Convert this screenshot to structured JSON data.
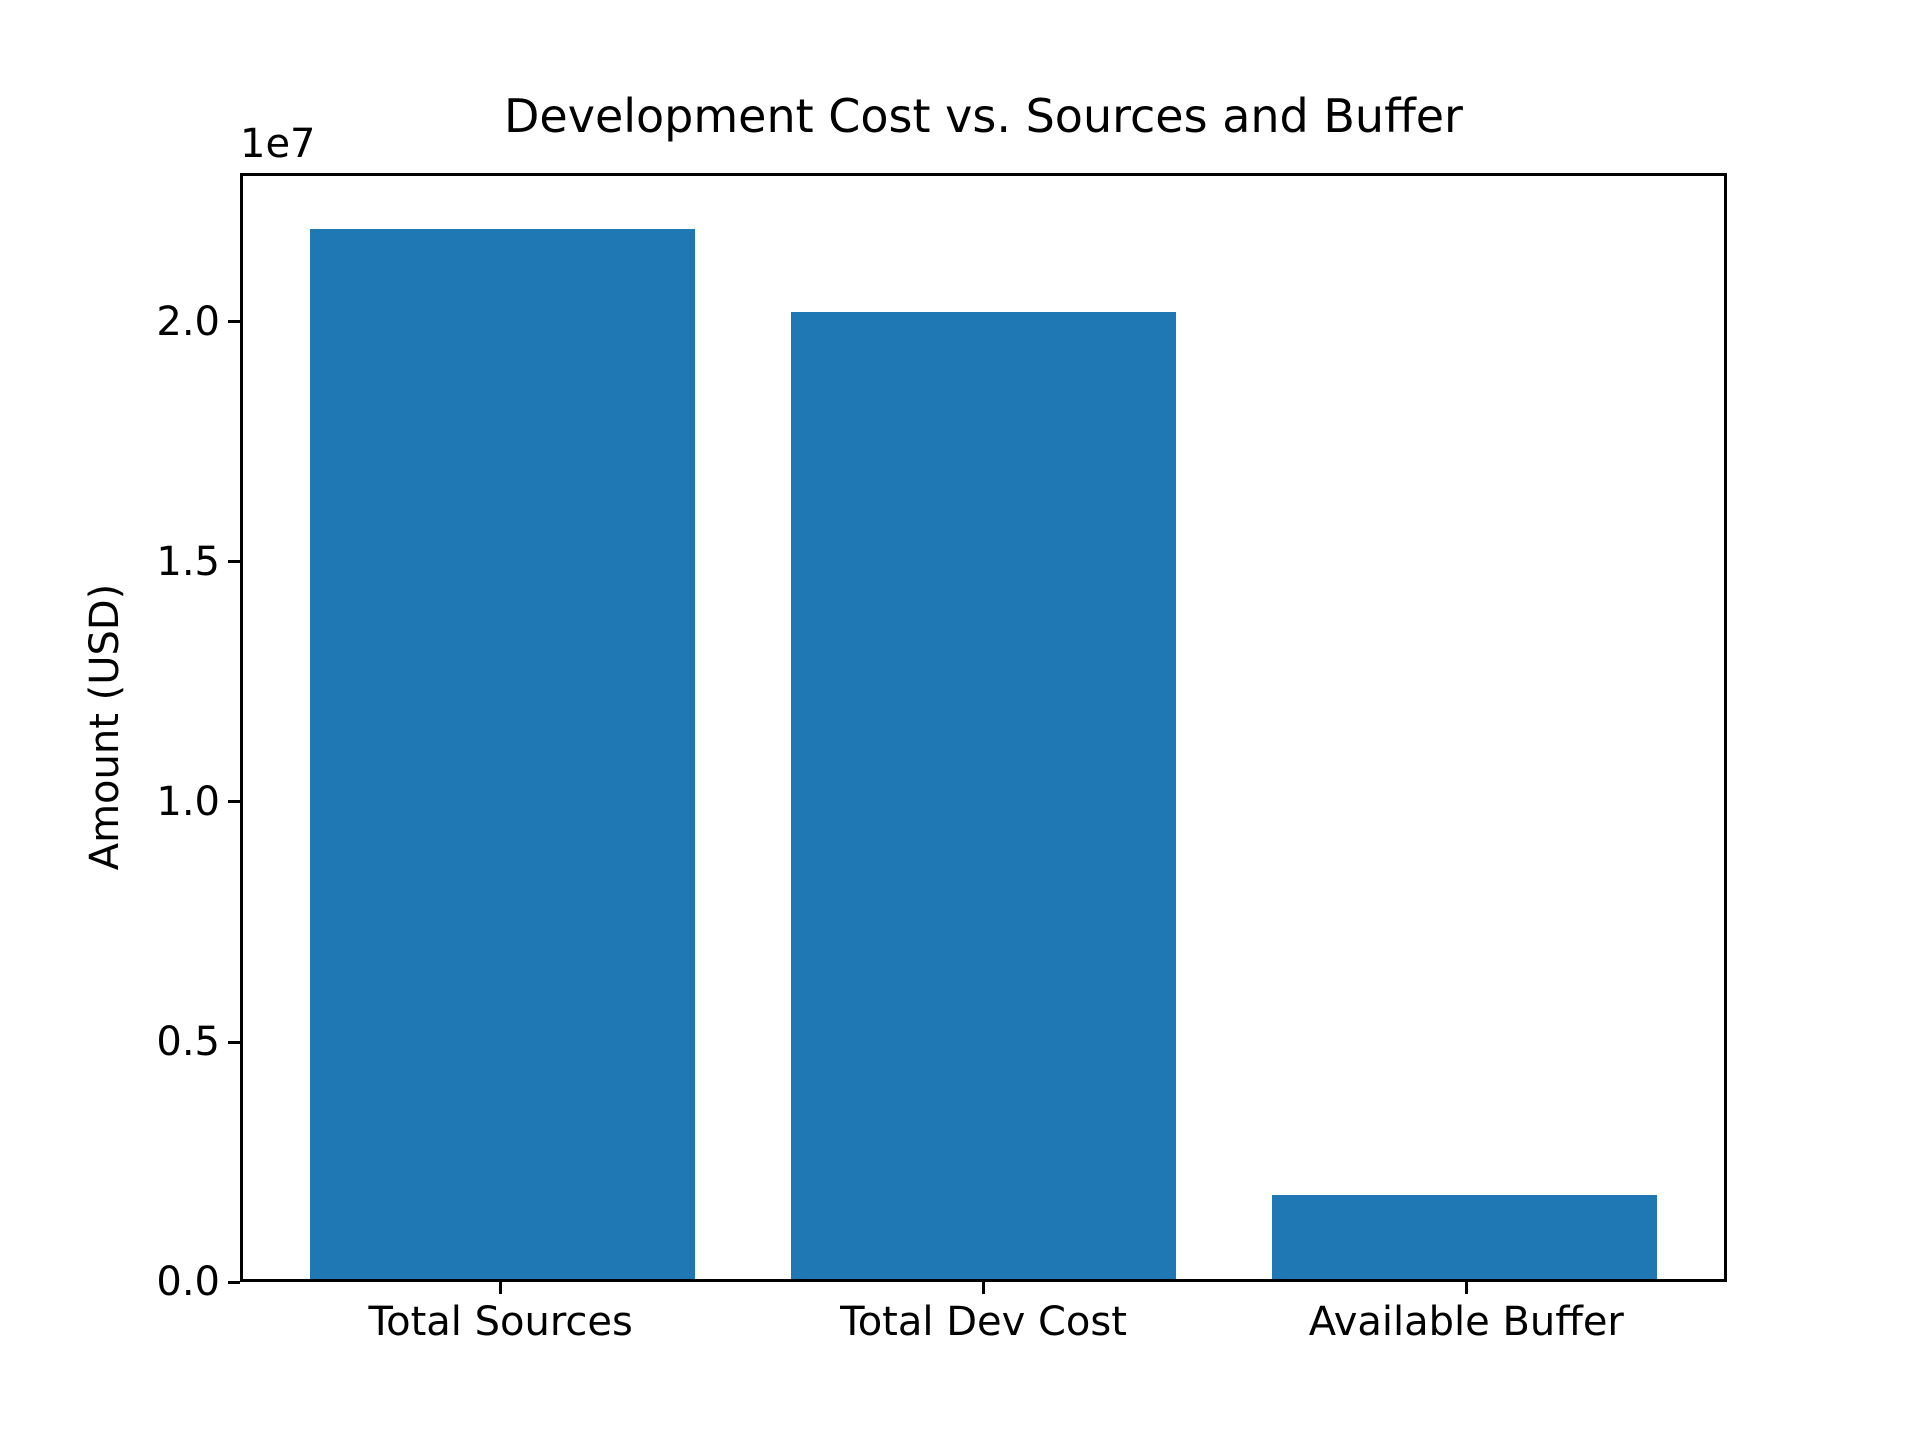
{
  "chart_data": {
    "type": "bar",
    "title": "Development Cost vs. Sources and Buffer",
    "xlabel": "",
    "ylabel": "Amount (USD)",
    "offset_text": "1e7",
    "categories": [
      "Total Sources",
      "Total Dev Cost",
      "Available Buffer"
    ],
    "values": [
      22000000,
      20250000,
      1750000
    ],
    "bar_color": "#1f77b4",
    "bar_width": 0.8,
    "xlim": [
      -0.54,
      2.54
    ],
    "ylim": [
      0,
      23100000
    ],
    "yticks": {
      "values": [
        0,
        5000000,
        10000000,
        15000000,
        20000000
      ],
      "labels": [
        "0.0",
        "0.5",
        "1.0",
        "1.5",
        "2.0"
      ]
    },
    "grid": false,
    "legend": "none"
  }
}
